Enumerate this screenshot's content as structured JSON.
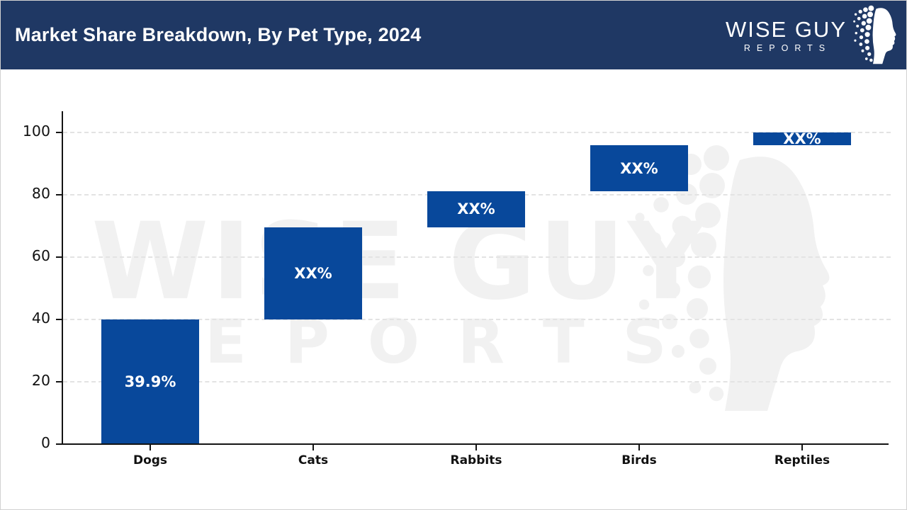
{
  "header": {
    "title": "Market Share Breakdown, By Pet Type, 2024",
    "background_color": "#1F3864"
  },
  "logo": {
    "line1": "WISE GUY",
    "line2": "REPORTS"
  },
  "watermark": {
    "line1": "WISE GUY",
    "line2": "R E P O R T S",
    "color": "#f1f1f1"
  },
  "chart_data": {
    "type": "bar",
    "subtype": "waterfall",
    "title": "Market Share Breakdown, By Pet Type, 2024",
    "categories": [
      "Dogs",
      "Cats",
      "Rabbits",
      "Birds",
      "Reptiles"
    ],
    "segments": [
      {
        "category": "Dogs",
        "start": 0,
        "end": 39.9,
        "label": "39.9%"
      },
      {
        "category": "Cats",
        "start": 39.9,
        "end": 69.5,
        "label": "XX%"
      },
      {
        "category": "Rabbits",
        "start": 69.5,
        "end": 81.2,
        "label": "XX%"
      },
      {
        "category": "Birds",
        "start": 81.2,
        "end": 95.8,
        "label": "XX%"
      },
      {
        "category": "Reptiles",
        "start": 95.8,
        "end": 100,
        "label": "XX%"
      }
    ],
    "yticks": [
      0,
      20,
      40,
      60,
      80,
      100
    ],
    "ylim": [
      0,
      106
    ],
    "xlabel": "",
    "ylabel": "",
    "bar_color": "#08489B",
    "grid": "dashed-horizontal",
    "legend": "none"
  }
}
